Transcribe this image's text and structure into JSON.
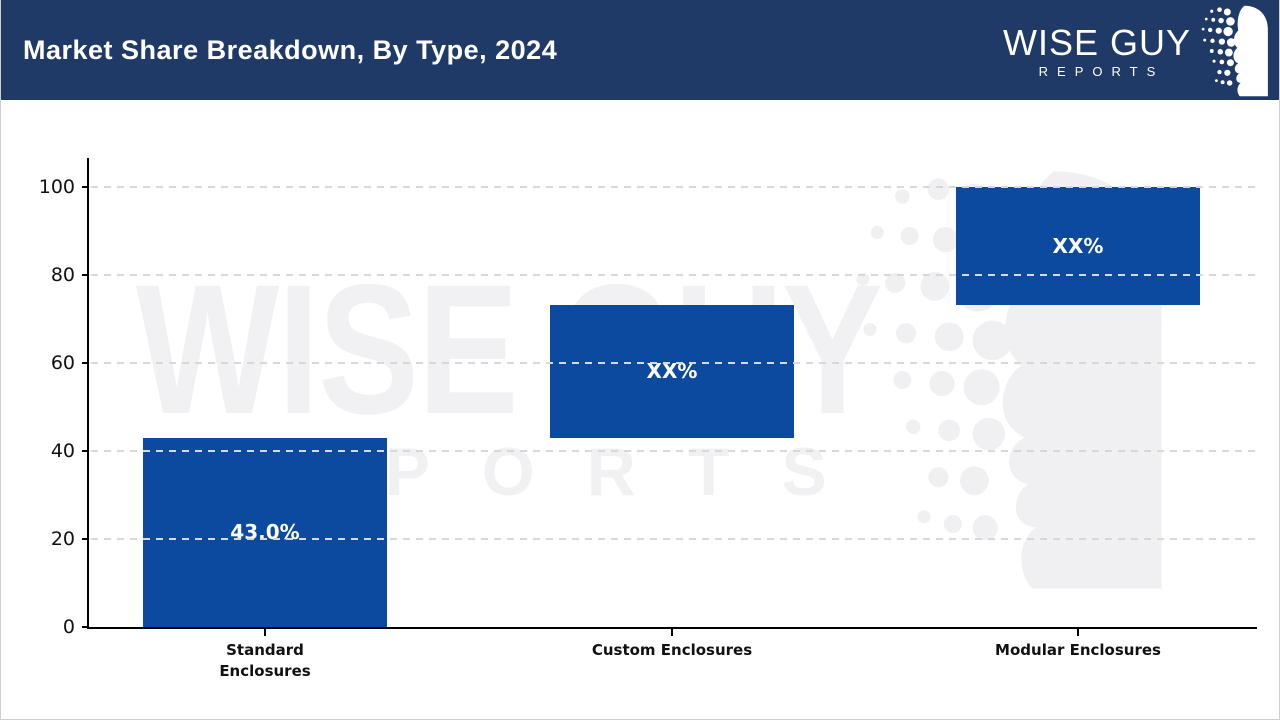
{
  "header": {
    "title": "Market Share Breakdown, By Type, 2024",
    "bg_color": "#203a68",
    "logo": {
      "line1": "WISE GUY",
      "line2": "REPORTS"
    }
  },
  "watermark": {
    "line1": "WISE GUY",
    "line2": "REPORTS"
  },
  "chart_data": {
    "type": "bar",
    "subtype": "stepped stacked segments (waterfall style), each bar starts where previous ends",
    "title": "Market Share Breakdown, By Type, 2024",
    "categories": [
      "Standard Enclosures",
      "Custom Enclosures",
      "Modular Enclosures"
    ],
    "tick_labels": [
      "Standard\nEnclosures",
      "Custom Enclosures",
      "Modular Enclosures"
    ],
    "segments": [
      {
        "category": "Standard Enclosures",
        "start": 0.0,
        "end": 43.0,
        "value_label": "43.0%"
      },
      {
        "category": "Custom Enclosures",
        "start": 43.0,
        "end": 73.2,
        "value_label": "XX%"
      },
      {
        "category": "Modular Enclosures",
        "start": 73.2,
        "end": 100.0,
        "value_label": "XX%"
      }
    ],
    "ylim": [
      0,
      100
    ],
    "yticks": [
      "0",
      "20",
      "40",
      "60",
      "80",
      "100"
    ],
    "grid": "dashed horizontal gridlines at yticks, drawn over bars",
    "legend": "none",
    "bar_color": "#0b4a9e",
    "value_label_color": "#ffffff",
    "gridline_color": "#d8d8d8"
  }
}
